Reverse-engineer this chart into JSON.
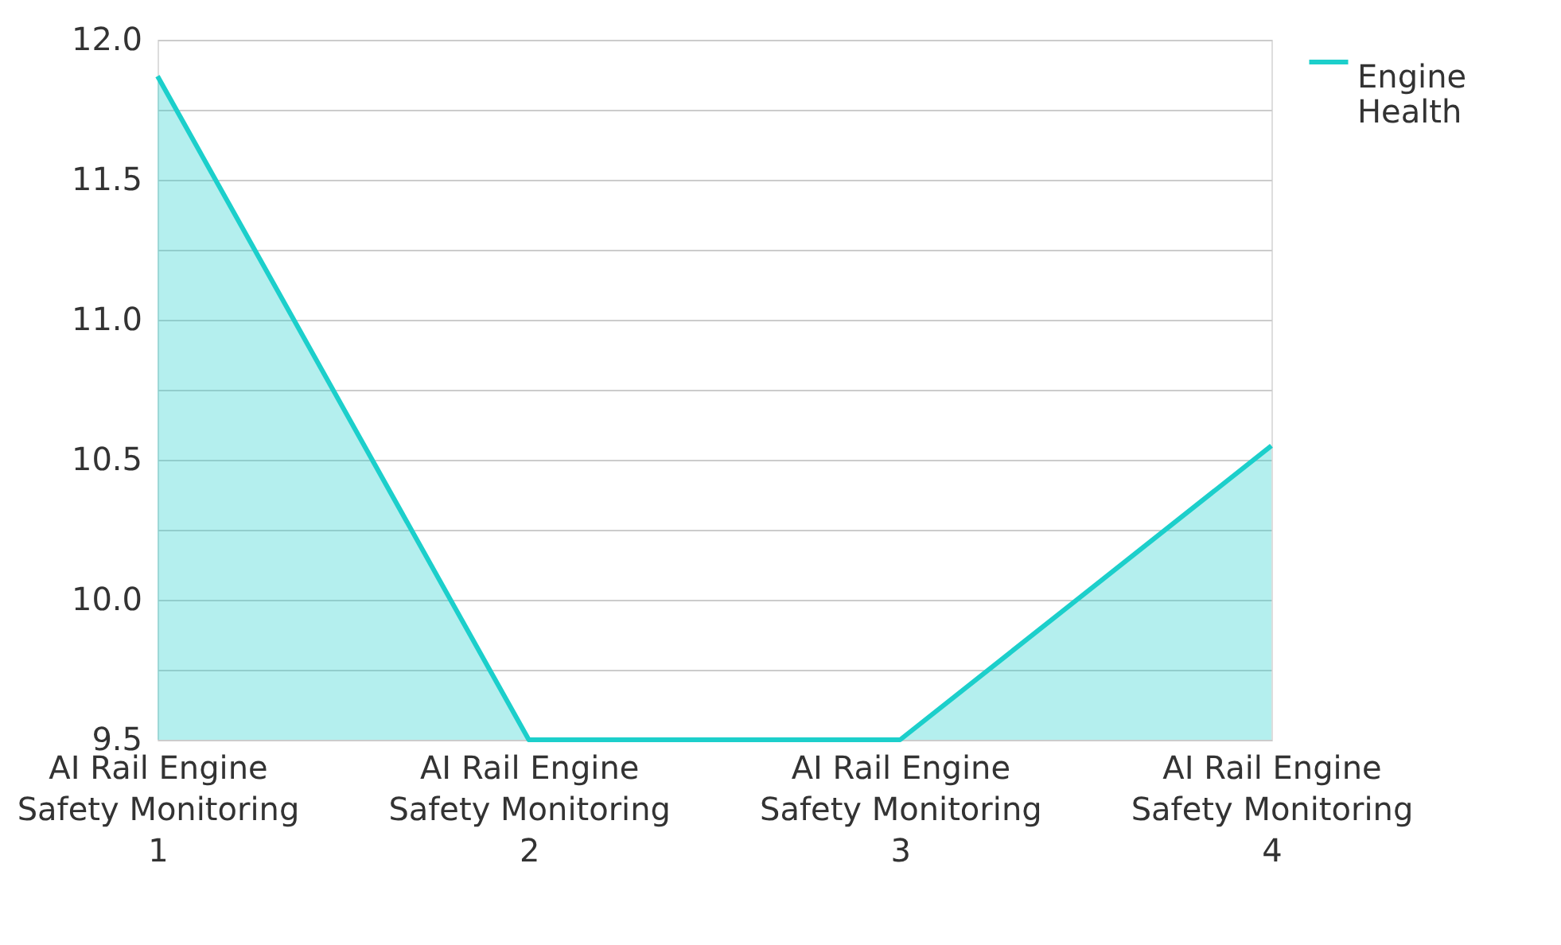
{
  "chart_data": {
    "type": "area",
    "categories": [
      "AI Rail Engine Safety Monitoring 1",
      "AI Rail Engine Safety Monitoring 2",
      "AI Rail Engine Safety Monitoring 3",
      "AI Rail Engine Safety Monitoring 4"
    ],
    "series": [
      {
        "name": "Engine Health",
        "color": "#1ccfcb",
        "values": [
          11.87,
          9.5,
          9.5,
          10.55
        ]
      }
    ],
    "ylim": [
      9.5,
      12.0
    ],
    "yticks": [
      9.5,
      {
        "value": 9.75,
        "label": null
      },
      {
        "value": 10,
        "label": "10.0"
      },
      {
        "value": 10.25,
        "label": null
      },
      10.5,
      {
        "value": 10.75,
        "label": null
      },
      {
        "value": 11,
        "label": "11.0"
      },
      {
        "value": 11.25,
        "label": null
      },
      11.5,
      {
        "value": 11.75,
        "label": null
      },
      {
        "value": 12,
        "label": "12.0"
      }
    ],
    "grid": "y",
    "legend": "top right"
  }
}
